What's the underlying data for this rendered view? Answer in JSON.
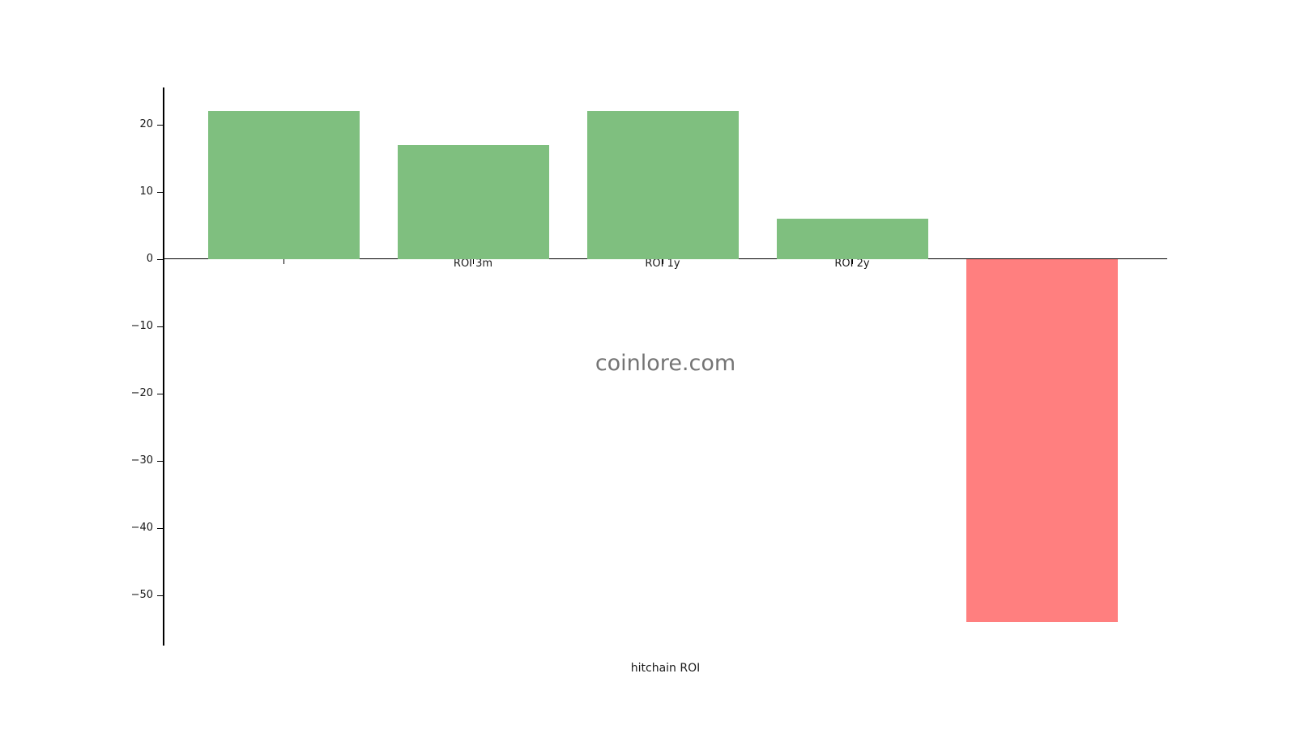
{
  "watermark": "coinlore.com",
  "chart_data": {
    "type": "bar",
    "title": "hitchain ROI",
    "xlabel": "",
    "ylabel": "",
    "categories": [
      "",
      "ROI 3m",
      "ROI 1y",
      "ROI 2y",
      ""
    ],
    "values": [
      22,
      17,
      22,
      6,
      -54
    ],
    "yticks": [
      20,
      10,
      0,
      -10,
      -20,
      -30,
      -40,
      -50
    ],
    "ytick_labels": [
      "20",
      "10",
      "0",
      "−10",
      "−20",
      "−30",
      "−40",
      "−50"
    ],
    "ylim": [
      -57.5,
      25.5
    ],
    "grid": false,
    "legend": "none",
    "positive_color": "#7fbf7f",
    "negative_color": "#ff7f7f",
    "axis_color": "#000000",
    "background_color": "#ffffff"
  }
}
